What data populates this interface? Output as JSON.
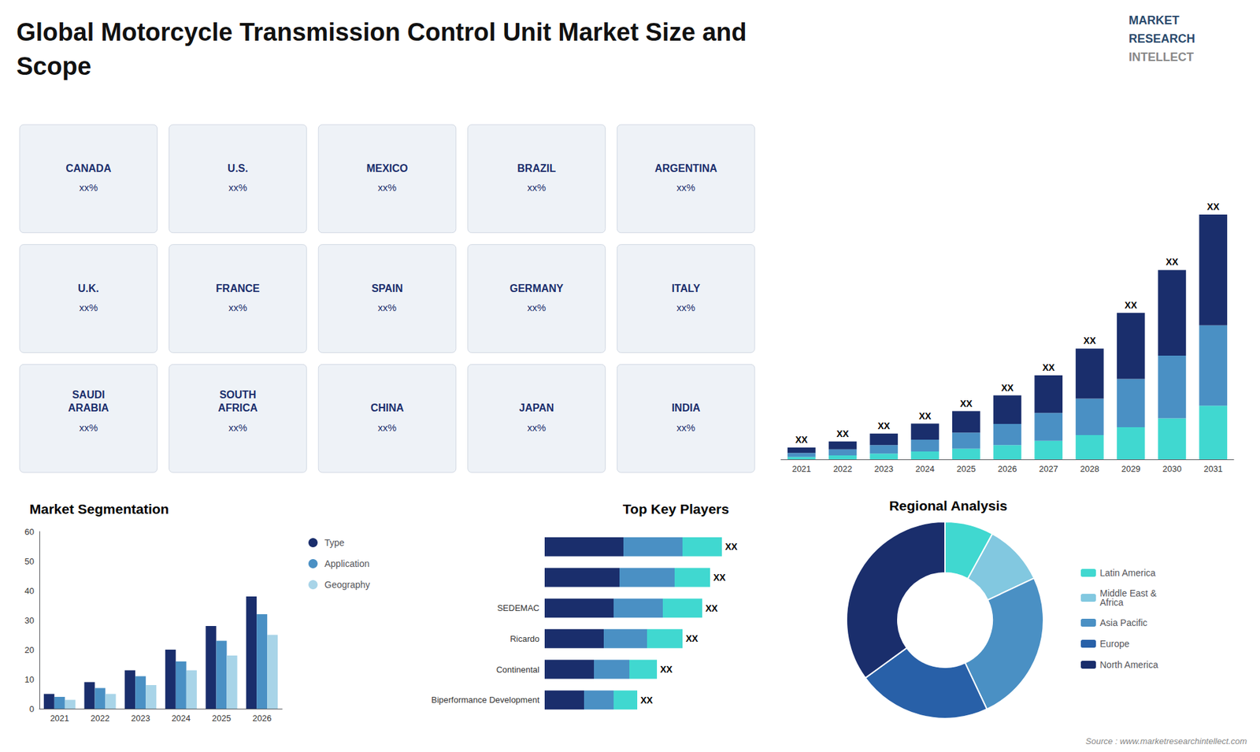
{
  "title": "Global Motorcycle Transmission Control Unit Market Size and\nScope",
  "annotations": [
    "MARKET",
    "RESEARCH",
    "INTELLECT",
    "Source : www.marketresearchintellect.com"
  ],
  "chart_data": [
    {
      "type": "map",
      "categories": [
        "CANADA",
        "U.S.",
        "MEXICO",
        "BRAZIL",
        "ARGENTINA",
        "U.K.",
        "FRANCE",
        "SPAIN",
        "GERMANY",
        "ITALY",
        "SAUDI\nARABIA",
        "SOUTH\nAFRICA",
        "CHINA",
        "JAPAN",
        "INDIA"
      ],
      "annotations": [
        "xx%",
        "xx%",
        "xx%",
        "xx%",
        "xx%",
        "xx%",
        "xx%",
        "xx%",
        "xx%",
        "xx%",
        "xx%",
        "xx%",
        "xx%",
        "xx%",
        "xx%"
      ]
    },
    {
      "type": "bar",
      "stacked": true,
      "grid": false,
      "tick_labels": "x",
      "categories": [
        "2021",
        "2022",
        "2023",
        "2024",
        "2025",
        "2026",
        "2027",
        "2028",
        "2029",
        "2030",
        "2031"
      ],
      "series": [
        {
          "color": "#40d8d0",
          "values": [
            0.7,
            1.1,
            1.6,
            2.2,
            3.0,
            4.0,
            5.2,
            6.8,
            9.0,
            11.5,
            15.0
          ]
        },
        {
          "color": "#4a90c4",
          "values": [
            1.1,
            1.7,
            2.4,
            3.3,
            4.5,
            5.9,
            7.8,
            10.2,
            13.5,
            17.5,
            22.5
          ]
        },
        {
          "color": "#1a2e6c",
          "values": [
            1.5,
            2.2,
            3.2,
            4.5,
            6.0,
            8.0,
            10.5,
            14.0,
            18.5,
            24.0,
            31.0
          ]
        }
      ],
      "annotations": [
        "XX",
        "XX",
        "XX",
        "XX",
        "XX",
        "XX",
        "XX",
        "XX",
        "XX",
        "XX",
        "XX"
      ],
      "ylim": [
        0,
        90
      ]
    },
    {
      "type": "bar",
      "title": "Market Segmentation",
      "grid": false,
      "legend": "right",
      "categories": [
        "2021",
        "2022",
        "2023",
        "2024",
        "2025",
        "2026"
      ],
      "series": [
        {
          "name": "Type",
          "color": "#1a2e6c",
          "values": [
            5,
            9,
            13,
            20,
            28,
            38
          ]
        },
        {
          "name": "Application",
          "color": "#4a90c4",
          "values": [
            4,
            7,
            11,
            16,
            23,
            32
          ]
        },
        {
          "name": "Geography",
          "color": "#a8d4e8",
          "values": [
            3,
            5,
            8,
            13,
            18,
            25
          ]
        }
      ],
      "ylim": [
        0,
        60
      ],
      "yticks": [
        0,
        10,
        20,
        30,
        40,
        50,
        60
      ]
    },
    {
      "type": "bar",
      "title": "Top Key Players",
      "orientation": "horizontal",
      "stacked": true,
      "grid": false,
      "tick_labels": "y",
      "categories": [
        "Biperformance Development",
        "Continental",
        "Ricardo",
        "SEDEMAC",
        null,
        null
      ],
      "series": [
        {
          "color": "#1a2e6c",
          "values": [
            2.0,
            2.5,
            3.0,
            3.5,
            3.8,
            4.0
          ]
        },
        {
          "color": "#4a90c4",
          "values": [
            1.5,
            1.8,
            2.2,
            2.5,
            2.8,
            3.0
          ]
        },
        {
          "color": "#40d8d0",
          "values": [
            1.2,
            1.4,
            1.8,
            2.0,
            1.8,
            2.0
          ]
        }
      ],
      "annotations": [
        "XX",
        "XX",
        "XX",
        "XX",
        "XX",
        "XX"
      ],
      "xlim": [
        0,
        13
      ]
    },
    {
      "type": "pie",
      "title": "Regional Analysis",
      "legend": "right",
      "labels": [
        "Latin America",
        "Middle East &\nAfrica",
        "Asia Pacific",
        "Europe",
        "North America"
      ],
      "values": [
        8,
        10,
        25,
        22,
        35
      ],
      "colors": [
        "#40d8d0",
        "#82c8e0",
        "#4a90c4",
        "#2860a8",
        "#1a2e6c"
      ]
    }
  ]
}
